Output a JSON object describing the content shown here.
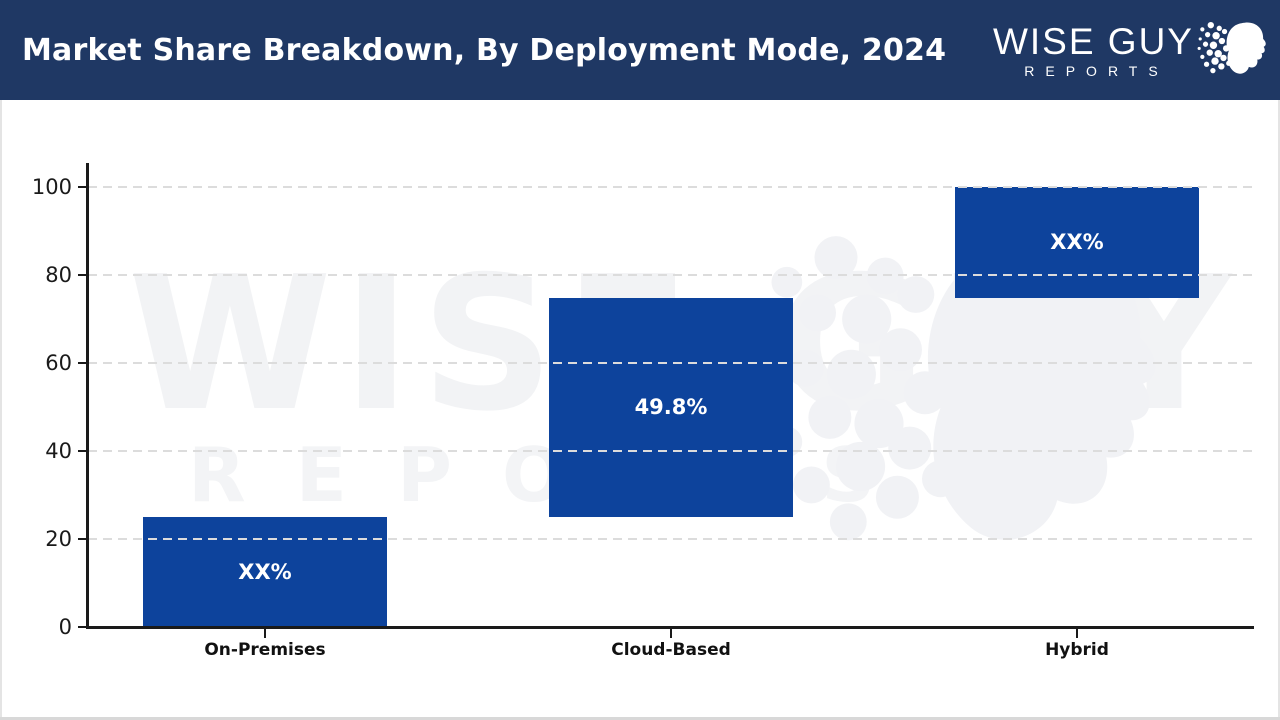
{
  "header": {
    "title": "Market Share Breakdown, By Deployment Mode, 2024",
    "bg_color": "#1f3864",
    "logo": {
      "line1": "WISE GUY",
      "line2": "REPORTS"
    }
  },
  "watermark": {
    "line1": "WISE GUY",
    "line2": "REPORTS"
  },
  "chart_data": {
    "type": "bar",
    "subtype": "floating-stacked-waterfall",
    "title": "Market Share Breakdown, By Deployment Mode, 2024",
    "categories": [
      "On-Premises",
      "Cloud-Based",
      "Hybrid"
    ],
    "segments": [
      {
        "category": "On-Premises",
        "start": 0,
        "end": 25,
        "label": "XX%"
      },
      {
        "category": "Cloud-Based",
        "start": 25,
        "end": 74.8,
        "label": "49.8%"
      },
      {
        "category": "Hybrid",
        "start": 74.8,
        "end": 100,
        "label": "XX%"
      }
    ],
    "ylim": [
      0,
      100
    ],
    "yticks": [
      0,
      20,
      40,
      60,
      80,
      100
    ],
    "xlabel": "",
    "ylabel": "",
    "grid": "horizontal dashed, drawn over bars",
    "legend": "none",
    "bar_color": "#0d439c",
    "label_color": "#ffffff",
    "axis_color": "#1a1a1a",
    "grid_color": "#dcdcdc"
  }
}
